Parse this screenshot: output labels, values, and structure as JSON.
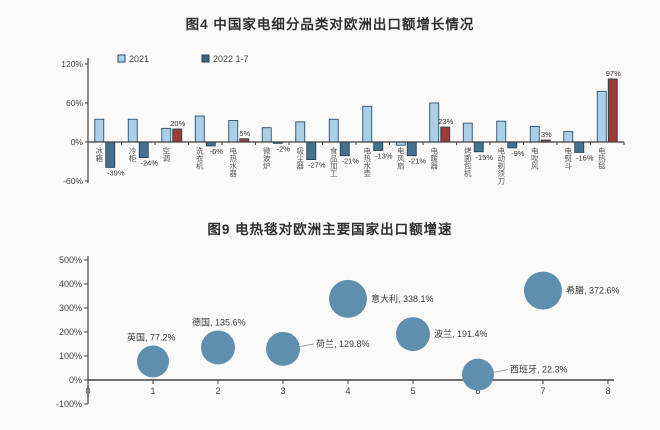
{
  "page": {
    "background": "#fbfaf8",
    "text_color": "#333333",
    "axis_color": "#3f3f3f"
  },
  "chart_data": [
    {
      "type": "bar",
      "title": "图4 中国家电细分品类对欧洲出口额增长情况",
      "legend_position": "top",
      "grid": false,
      "ylim": [
        -60,
        120
      ],
      "yticks": [
        {
          "value": 120,
          "label": "120%"
        },
        {
          "value": 60,
          "label": "60%"
        },
        {
          "value": 0,
          "label": "0%"
        },
        {
          "value": -60,
          "label": "-60%"
        }
      ],
      "categories": [
        "冰箱",
        "冷柜",
        "空调",
        "洗衣机",
        "电热水器",
        "微波炉",
        "吸尘器",
        "食品加工",
        "电热水壶",
        "电风扇",
        "电暖器",
        "烤面包机",
        "电动剃须刀",
        "电吹风",
        "电熨斗",
        "电热毯"
      ],
      "series": [
        {
          "name": "2021",
          "color": "#A9D0E6",
          "stroke": "#2A4E6E",
          "values": [
            35,
            35,
            21,
            40,
            33,
            22,
            31,
            35,
            55,
            -5,
            60,
            29,
            32,
            24,
            16,
            78
          ]
        },
        {
          "name": "2022 1-7",
          "color_positive": "#9E3B36",
          "color_negative": "#44718F",
          "stroke": "#21445c",
          "legend_color": "#3c6577",
          "values": [
            -39,
            -24,
            20,
            -6,
            5,
            -2,
            -27,
            -21,
            -13,
            -21,
            23,
            -15,
            -9,
            3,
            -16,
            97
          ],
          "labels": [
            "-39%",
            "-24%",
            "20%",
            "-6%",
            "5%",
            "-2%",
            "-27%",
            "-21%",
            "-13%",
            "-21%",
            "23%",
            "-15%",
            "-9%",
            "3%",
            "-16%",
            "97%"
          ]
        }
      ]
    },
    {
      "type": "scatter",
      "title": "图9 电热毯对欧洲主要国家出口额增速",
      "grid": false,
      "bubble_color": "#5F8FAE",
      "ylim": [
        -100,
        500
      ],
      "yticks": [
        {
          "value": 500,
          "label": "500%"
        },
        {
          "value": 400,
          "label": "400%"
        },
        {
          "value": 300,
          "label": "300%"
        },
        {
          "value": 200,
          "label": "200%"
        },
        {
          "value": 100,
          "label": "100%"
        },
        {
          "value": 0,
          "label": "0%"
        },
        {
          "value": -100,
          "label": "-100%"
        }
      ],
      "xticks": [
        "0",
        "1",
        "2",
        "3",
        "4",
        "5",
        "6",
        "7",
        "8"
      ],
      "points": [
        {
          "x": 1,
          "country": "英国",
          "value": 77.2,
          "label": "英国, 77.2%",
          "r": 16,
          "label_side": "above"
        },
        {
          "x": 2,
          "country": "德国",
          "value": 135.6,
          "label": "德国, 135.6%",
          "r": 17,
          "label_side": "above"
        },
        {
          "x": 3,
          "country": "荷兰",
          "value": 129.8,
          "label": "荷兰, 129.8%",
          "r": 17,
          "label_side": "right-leader"
        },
        {
          "x": 4,
          "country": "意大利",
          "value": 338.1,
          "label": "意大利, 338.1%",
          "r": 19,
          "label_side": "right"
        },
        {
          "x": 5,
          "country": "波兰",
          "value": 191.4,
          "label": "波兰, 191.4%",
          "r": 17,
          "label_side": "right"
        },
        {
          "x": 6,
          "country": "西班牙",
          "value": 22.3,
          "label": "西班牙, 22.3%",
          "r": 16,
          "label_side": "right-leader"
        },
        {
          "x": 7,
          "country": "希腊",
          "value": 372.6,
          "label": "希腊, 372.6%",
          "r": 19,
          "label_side": "right"
        }
      ]
    }
  ]
}
